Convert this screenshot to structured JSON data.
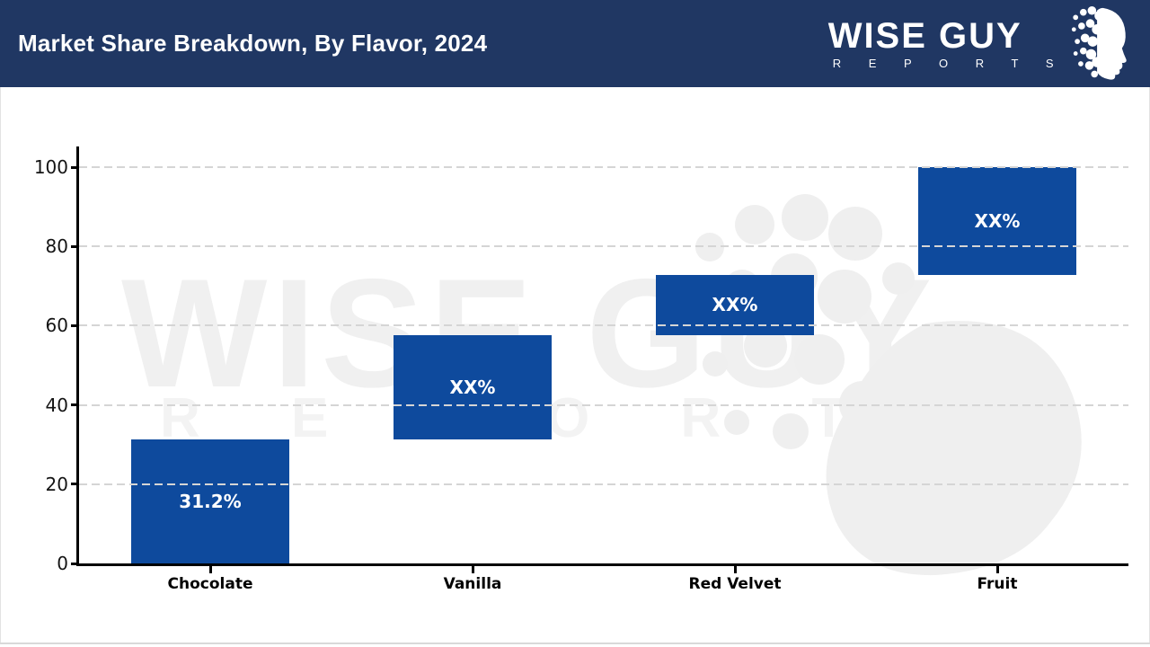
{
  "header": {
    "background": "#203763",
    "title": "Market Share Breakdown, By Flavor, 2024",
    "logo": {
      "primary": "WISE GUY",
      "secondary": "R E P O R T S",
      "icon": "wise-guy-face-icon"
    }
  },
  "watermark": {
    "line1": "WISE GUY",
    "line2": "R E P O R T S"
  },
  "chart_data": {
    "type": "bar",
    "subtype": "floating-waterfall-bars",
    "title": "Market Share Breakdown, By Flavor, 2024",
    "categories": [
      "Chocolate",
      "Vanilla",
      "Red Velvet",
      "Fruit"
    ],
    "segments": [
      {
        "category": "Chocolate",
        "start": 0,
        "end": 31.2,
        "label": "31.2%"
      },
      {
        "category": "Vanilla",
        "start": 31.2,
        "end": 57.6,
        "label": "XX%"
      },
      {
        "category": "Red Velvet",
        "start": 57.6,
        "end": 72.8,
        "label": "XX%"
      },
      {
        "category": "Fruit",
        "start": 72.8,
        "end": 100,
        "label": "XX%"
      }
    ],
    "xlabel": "",
    "ylabel": "",
    "ylim": [
      0,
      100
    ],
    "yticks": [
      "0",
      "20",
      "40",
      "60",
      "80",
      "100"
    ],
    "grid": "horizontal-dashed",
    "legend": "none",
    "bar_color": "#0e4a9d",
    "bar_label_color": "#ffffff",
    "axis_color": "#000000",
    "gridline_color": "#d5d5d5",
    "tick_label_color": "#141414"
  }
}
